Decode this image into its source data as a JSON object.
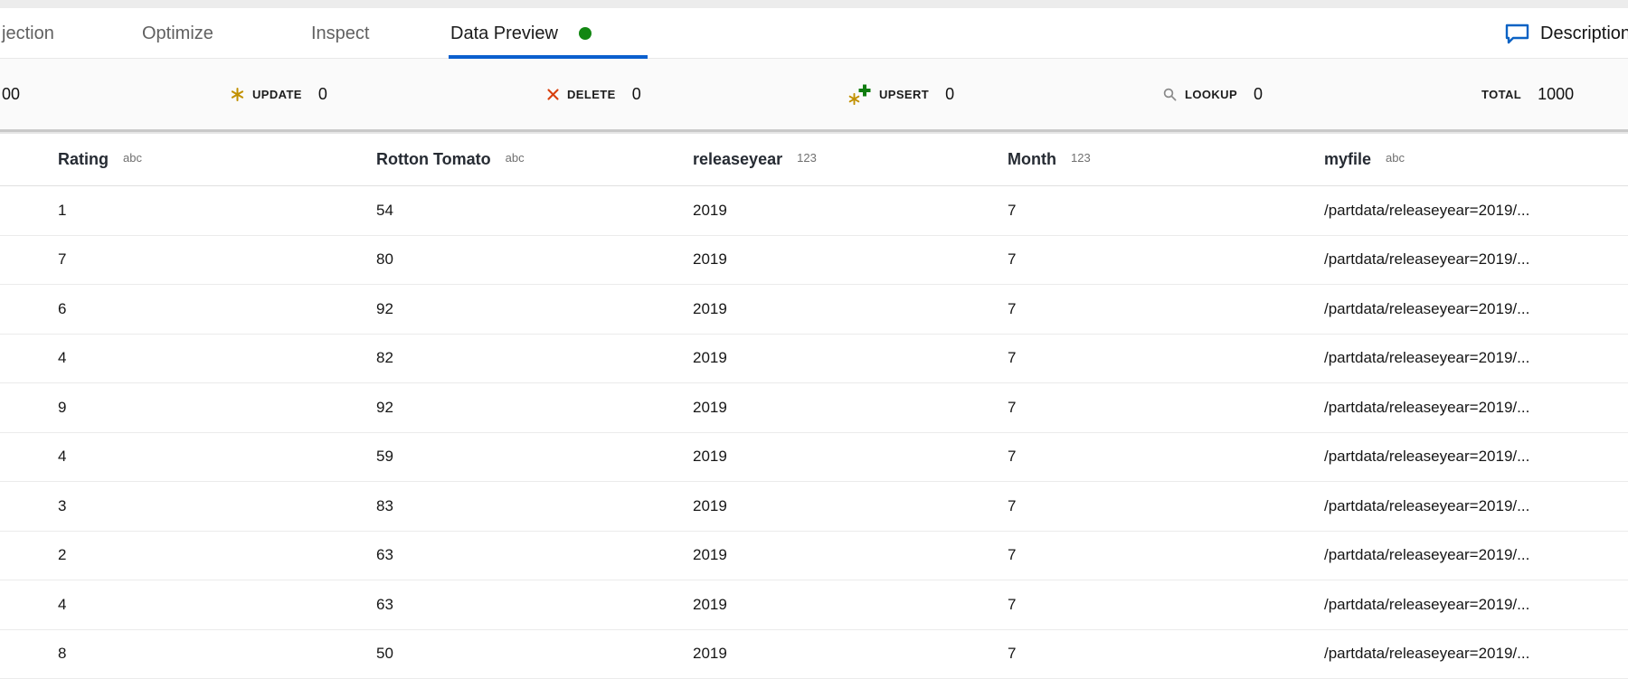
{
  "tabs": {
    "items": [
      {
        "label": "jection",
        "state": "inactive",
        "note": "left-truncated tab name"
      },
      {
        "label": "Optimize",
        "state": "inactive"
      },
      {
        "label": "Inspect",
        "state": "inactive"
      },
      {
        "label": "Data Preview",
        "state": "active",
        "has_status_dot": true
      }
    ],
    "description_label": "Description"
  },
  "stats_bar": {
    "items": [
      {
        "label": "",
        "value": "00",
        "icon": "none",
        "note": "left-truncated counter"
      },
      {
        "label": "UPDATE",
        "value": "0",
        "icon": "asterisk-icon"
      },
      {
        "label": "DELETE",
        "value": "0",
        "icon": "x-icon"
      },
      {
        "label": "UPSERT",
        "value": "0",
        "icon": "asterisk-plus-icon"
      },
      {
        "label": "LOOKUP",
        "value": "0",
        "icon": "magnifier-icon"
      },
      {
        "label": "TOTAL",
        "value": "1000",
        "icon": "none"
      }
    ]
  },
  "table": {
    "columns": [
      {
        "name": "Rating",
        "type": "abc"
      },
      {
        "name": "Rotton Tomato",
        "type": "abc"
      },
      {
        "name": "releaseyear",
        "type": "123"
      },
      {
        "name": "Month",
        "type": "123"
      },
      {
        "name": "myfile",
        "type": "abc"
      }
    ],
    "rows": [
      [
        "1",
        "54",
        "2019",
        "7",
        "/partdata/releaseyear=2019/..."
      ],
      [
        "7",
        "80",
        "2019",
        "7",
        "/partdata/releaseyear=2019/..."
      ],
      [
        "6",
        "92",
        "2019",
        "7",
        "/partdata/releaseyear=2019/..."
      ],
      [
        "4",
        "82",
        "2019",
        "7",
        "/partdata/releaseyear=2019/..."
      ],
      [
        "9",
        "92",
        "2019",
        "7",
        "/partdata/releaseyear=2019/..."
      ],
      [
        "4",
        "59",
        "2019",
        "7",
        "/partdata/releaseyear=2019/..."
      ],
      [
        "3",
        "83",
        "2019",
        "7",
        "/partdata/releaseyear=2019/..."
      ],
      [
        "2",
        "63",
        "2019",
        "7",
        "/partdata/releaseyear=2019/..."
      ],
      [
        "4",
        "63",
        "2019",
        "7",
        "/partdata/releaseyear=2019/..."
      ],
      [
        "8",
        "50",
        "2019",
        "7",
        "/partdata/releaseyear=2019/..."
      ]
    ]
  },
  "colors": {
    "accent_blue": "#0b5fce",
    "status_green": "#128712",
    "update_gold": "#c19000",
    "delete_red": "#d8400e",
    "upsert_plus_green": "#107c10",
    "lookup_gray": "#8a8a8a",
    "stats_bg": "#fafafa",
    "row_border": "#ebebeb"
  }
}
